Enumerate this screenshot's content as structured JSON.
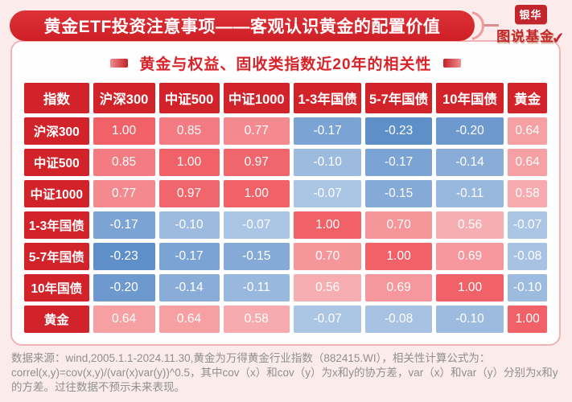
{
  "header": {
    "banner_title": "黄金ETF投资注意事项——客观认识黄金的配置价值",
    "logo": {
      "brand": "银华",
      "series": "图说基金",
      "check": "✔"
    }
  },
  "subtitle": "黄金与权益、固收类指数近20年的相关性",
  "chart_data": {
    "type": "heatmap",
    "title": "黄金与权益、固收类指数近20年的相关性",
    "corner_label": "指数",
    "columns": [
      "沪深300",
      "中证500",
      "中证1000",
      "1-3年国债",
      "5-7年国债",
      "10年国债",
      "黄金"
    ],
    "rows": [
      "沪深300",
      "中证500",
      "中证1000",
      "1-3年国债",
      "5-7年国债",
      "10年国债",
      "黄金"
    ],
    "values": [
      [
        1.0,
        0.85,
        0.77,
        -0.17,
        -0.23,
        -0.2,
        0.64
      ],
      [
        0.85,
        1.0,
        0.97,
        -0.1,
        -0.17,
        -0.14,
        0.64
      ],
      [
        0.77,
        0.97,
        1.0,
        -0.07,
        -0.15,
        -0.11,
        0.58
      ],
      [
        -0.17,
        -0.1,
        -0.07,
        1.0,
        0.7,
        0.56,
        -0.07
      ],
      [
        -0.23,
        -0.17,
        -0.15,
        0.7,
        1.0,
        0.69,
        -0.08
      ],
      [
        -0.2,
        -0.14,
        -0.11,
        0.56,
        0.69,
        1.0,
        -0.1
      ],
      [
        0.64,
        0.64,
        0.58,
        -0.07,
        -0.08,
        -0.1,
        1.0
      ]
    ],
    "value_range": [
      -1,
      1
    ],
    "legend": "none",
    "colors": {
      "header_bg": "#d2232b",
      "positive_max": "#f06168",
      "negative_max": "#558bc6",
      "cell_text": "#ffffff"
    }
  },
  "footer": {
    "lines": [
      "数据来源：wind,2005.1.1-2024.11.30,黄金为万得黄金行业指数（882415.WI），相关性计算公式为：",
      "correl(x,y)=cov(x,y)/(var(x)var(y))^0.5，其中cov（x）和cov（y）为x和y的协方差，var（x）和var（y）分别为x和y",
      "的方差。过往数据不预示未来表现。"
    ]
  },
  "theme": {
    "page_bg": "#fcebeb",
    "banner_red": "#d02027",
    "card_border": "#f0b3b7",
    "footer_gray": "#8f8f8f"
  }
}
